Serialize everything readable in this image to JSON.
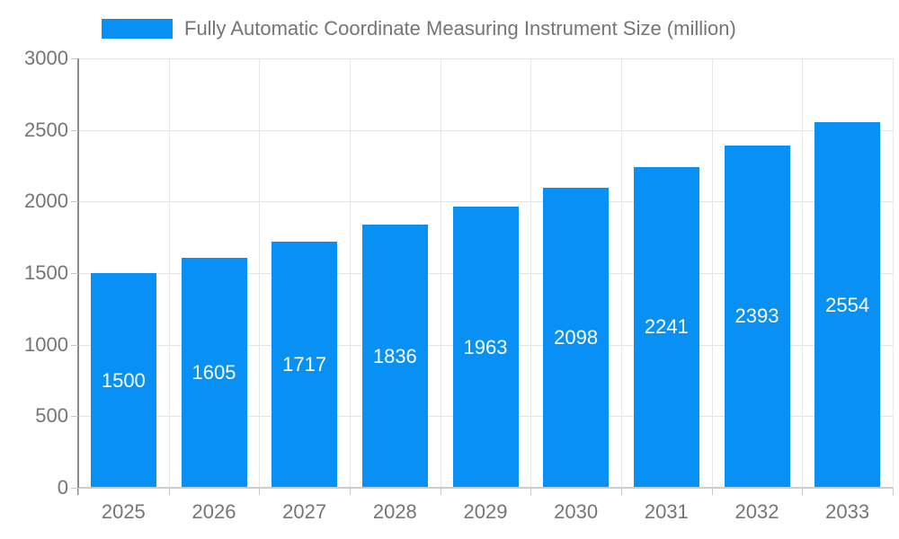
{
  "chart_data": {
    "type": "bar",
    "legend": "Fully Automatic Coordinate Measuring Instrument Size (million)",
    "legend_position": "top-left",
    "categories": [
      "2025",
      "2026",
      "2027",
      "2028",
      "2029",
      "2030",
      "2031",
      "2032",
      "2033"
    ],
    "values": [
      1500,
      1605,
      1717,
      1836,
      1963,
      2098,
      2241,
      2393,
      2554
    ],
    "xlabel": "",
    "ylabel": "",
    "ylim": [
      0,
      3000
    ],
    "y_ticks": [
      0,
      500,
      1000,
      1500,
      2000,
      2500,
      3000
    ],
    "grid": true,
    "bar_color": "#0890f5",
    "axis_label_color": "#757575",
    "value_label_color": "#ffffff",
    "gridline_color": "#e3e3e3",
    "axis_line_color": "#8a8a8a"
  }
}
